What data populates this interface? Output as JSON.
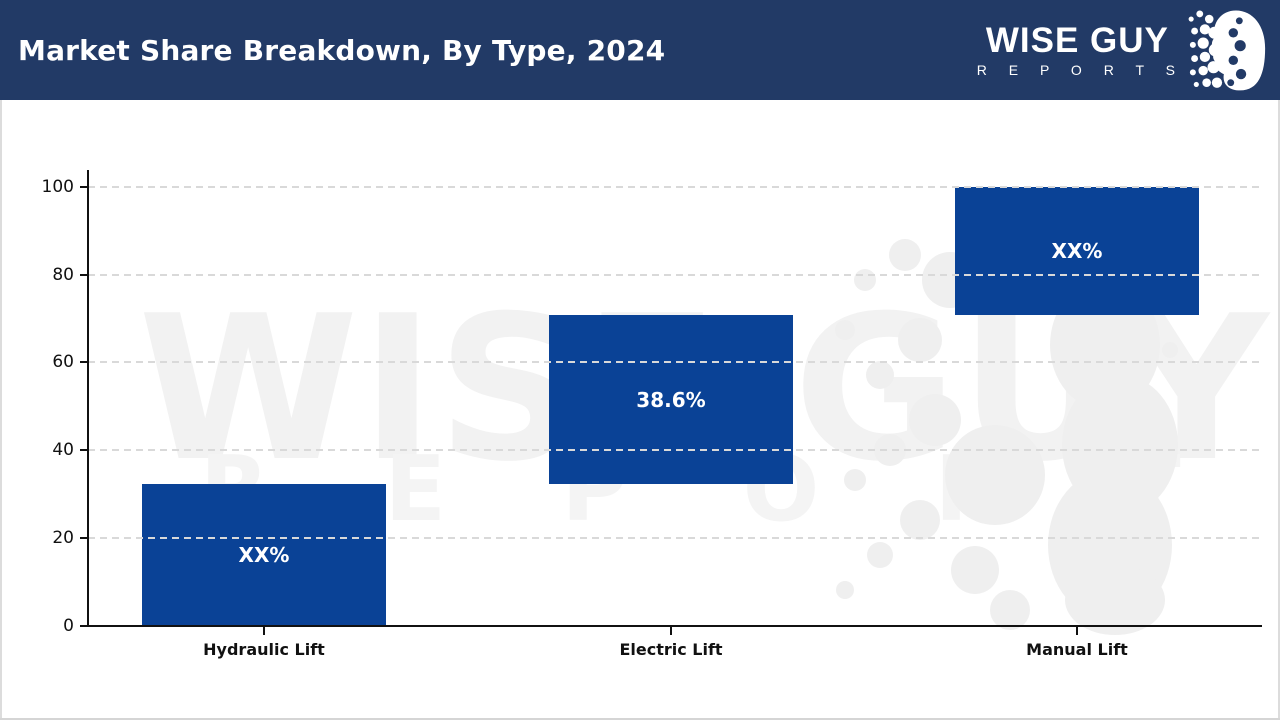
{
  "header": {
    "title": "Market Share Breakdown, By Type, 2024",
    "background_color": "#223A66",
    "logo": {
      "line1": "WISE GUY",
      "line2": "R E P O R T S",
      "face_icon": "dotted-head-profile-icon"
    }
  },
  "watermark": {
    "line1": "WISE GUY",
    "line2": "R E P O R T S",
    "face_icon": "dotted-head-profile-watermark"
  },
  "chart_data": {
    "type": "bar",
    "variant": "waterfall",
    "title": "Market Share Breakdown, By Type, 2024",
    "categories": [
      "Hydraulic Lift",
      "Electric Lift",
      "Manual Lift"
    ],
    "bars": [
      {
        "category": "Hydraulic Lift",
        "label": "XX%",
        "start": 0,
        "end": 32.2,
        "value_pct": 32.2
      },
      {
        "category": "Electric Lift",
        "label": "38.6%",
        "start": 32.2,
        "end": 70.8,
        "value_pct": 38.6
      },
      {
        "category": "Manual Lift",
        "label": "XX%",
        "start": 70.8,
        "end": 100,
        "value_pct": 29.2
      }
    ],
    "xlabel": "",
    "ylabel": "",
    "yticks": [
      0,
      20,
      40,
      60,
      80,
      100
    ],
    "ylim": [
      0,
      104
    ],
    "grid": {
      "axis": "y",
      "style": "dashed",
      "color": "#D9D9D9",
      "drawn_over_bars": true
    },
    "legend": "none",
    "bar_color": "#0A4296",
    "bar_label_color": "#FFFFFF",
    "axis_color": "#111111"
  }
}
